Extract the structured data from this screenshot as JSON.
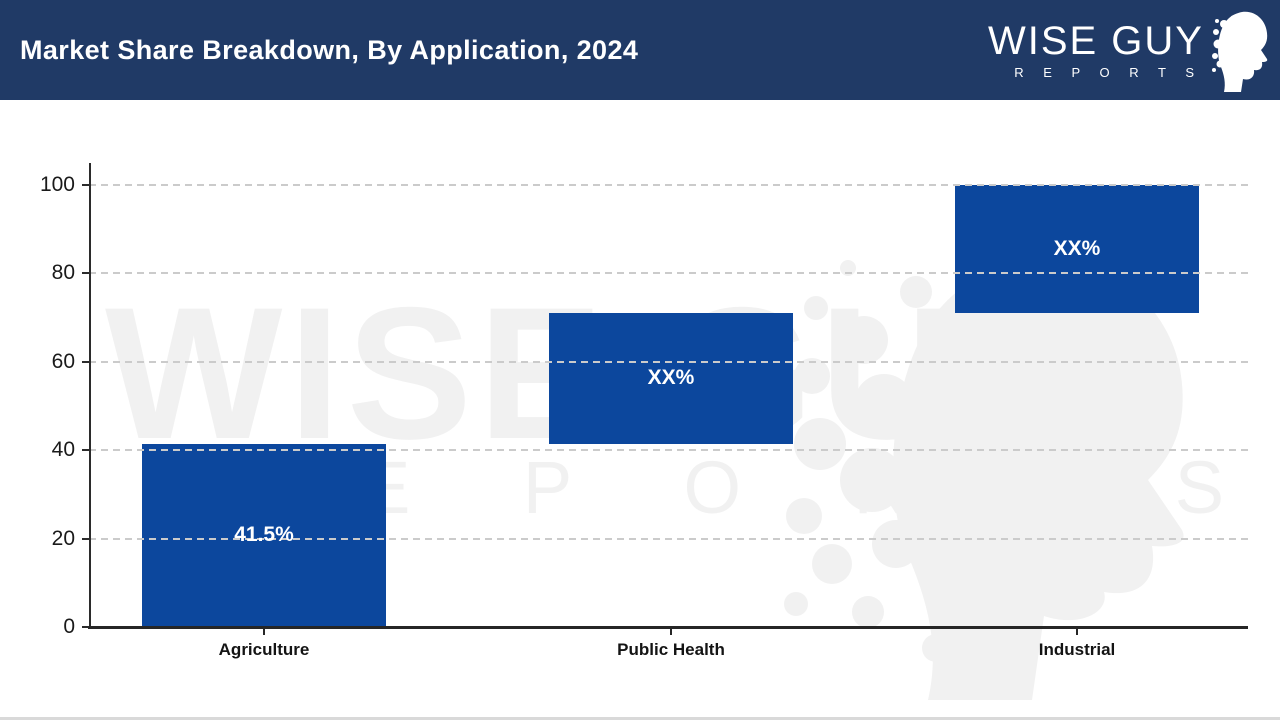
{
  "header": {
    "title": "Market Share Breakdown, By Application, 2024",
    "logo": {
      "line1": "WISE GUY",
      "line2": "R E P O R T S"
    }
  },
  "watermark": {
    "line1": "WISE GUY",
    "line2": "R E P O R T S"
  },
  "colors": {
    "header_bg": "#203a66",
    "bar": "#0c479d",
    "grid": "#cbcbcb",
    "axis": "#262626",
    "bar_label": "#ffffff",
    "watermark": "#f1f1f1"
  },
  "chart_data": {
    "type": "bar",
    "variant": "waterfall",
    "title": "Market Share Breakdown, By Application, 2024",
    "categories": [
      "Agriculture",
      "Public Health",
      "Industrial"
    ],
    "segments": [
      {
        "category": "Agriculture",
        "start": 0,
        "end": 41.5,
        "label": "41.5%"
      },
      {
        "category": "Public Health",
        "start": 41.5,
        "end": 71,
        "label": "XX%"
      },
      {
        "category": "Industrial",
        "start": 71,
        "end": 100,
        "label": "XX%"
      }
    ],
    "ylim": [
      0,
      100
    ],
    "yticks": [
      0,
      20,
      40,
      60,
      80,
      100
    ],
    "grid": "dashed-horizontal",
    "legend": "none"
  }
}
